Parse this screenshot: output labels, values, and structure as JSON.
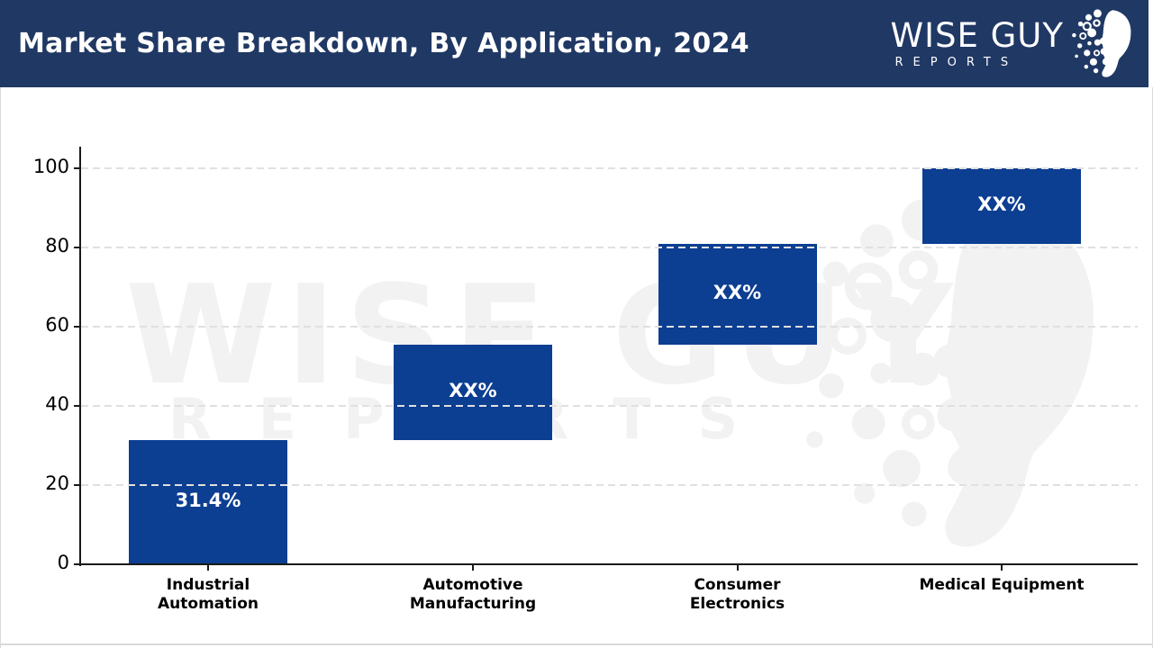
{
  "header": {
    "title": "Market Share Breakdown, By Application, 2024",
    "bg_color": "#203864",
    "logo": {
      "name": "WISE GUY",
      "tagline": "REPORTS"
    }
  },
  "watermark": {
    "line1": "WISE GUY",
    "line2": "REPORTS"
  },
  "chart_data": {
    "type": "bar",
    "subtype": "waterfall",
    "title": "Market Share Breakdown, By Application, 2024",
    "categories": [
      "Industrial Automation",
      "Automotive Manufacturing",
      "Consumer Electronics",
      "Medical Equipment"
    ],
    "category_lines": [
      [
        "Industrial",
        "Automation"
      ],
      [
        "Automotive",
        "Manufacturing"
      ],
      [
        "Consumer",
        "Electronics"
      ],
      [
        "Medical Equipment"
      ]
    ],
    "segments": [
      {
        "category": "Industrial Automation",
        "start": 0,
        "end": 31.4,
        "label": "31.4%"
      },
      {
        "category": "Automotive Manufacturing",
        "start": 31.4,
        "end": 55.4,
        "label": "XX%"
      },
      {
        "category": "Consumer Electronics",
        "start": 55.4,
        "end": 81.0,
        "label": "XX%"
      },
      {
        "category": "Medical Equipment",
        "start": 81.0,
        "end": 100.0,
        "label": "XX%"
      }
    ],
    "ylim": [
      0,
      100
    ],
    "yticks": [
      0,
      20,
      40,
      60,
      80,
      100
    ],
    "xlabel": "",
    "ylabel": "",
    "bar_color": "#0c3e92",
    "grid": {
      "horizontal": true,
      "style": "dashed",
      "color": "#e0e0e0",
      "above_bars": true
    },
    "legend": "none"
  }
}
